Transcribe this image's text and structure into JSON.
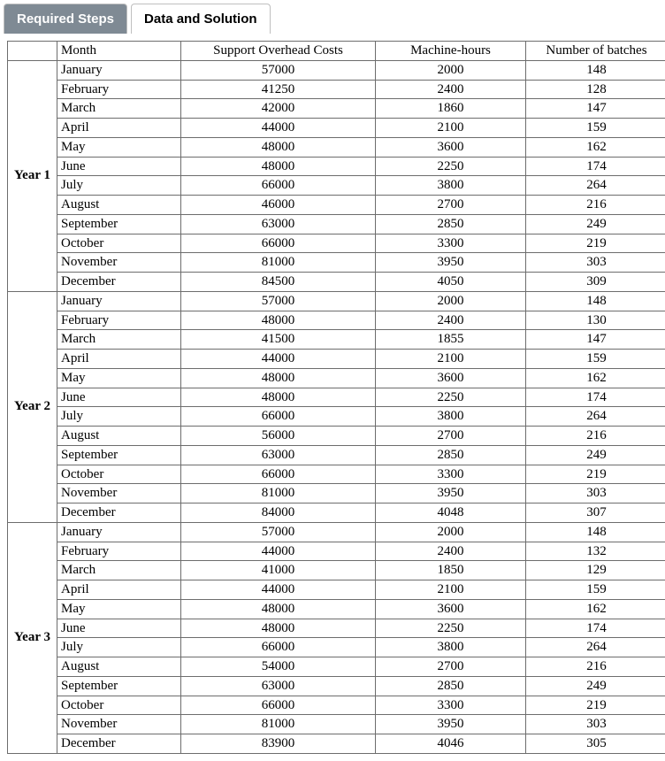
{
  "tabs": [
    {
      "label": "Required Steps",
      "active": false
    },
    {
      "label": "Data and Solution",
      "active": true
    }
  ],
  "table": {
    "headers": {
      "month": "Month",
      "cost": "Support Overhead Costs",
      "mh": "Machine-hours",
      "nb": "Number of batches"
    },
    "groups": [
      {
        "label": "Year 1",
        "rows": [
          {
            "month": "January",
            "cost": 57000,
            "mh": 2000,
            "nb": 148
          },
          {
            "month": "February",
            "cost": 41250,
            "mh": 2400,
            "nb": 128
          },
          {
            "month": "March",
            "cost": 42000,
            "mh": 1860,
            "nb": 147
          },
          {
            "month": "April",
            "cost": 44000,
            "mh": 2100,
            "nb": 159
          },
          {
            "month": "May",
            "cost": 48000,
            "mh": 3600,
            "nb": 162
          },
          {
            "month": "June",
            "cost": 48000,
            "mh": 2250,
            "nb": 174
          },
          {
            "month": "July",
            "cost": 66000,
            "mh": 3800,
            "nb": 264
          },
          {
            "month": "August",
            "cost": 46000,
            "mh": 2700,
            "nb": 216
          },
          {
            "month": "September",
            "cost": 63000,
            "mh": 2850,
            "nb": 249
          },
          {
            "month": "October",
            "cost": 66000,
            "mh": 3300,
            "nb": 219
          },
          {
            "month": "November",
            "cost": 81000,
            "mh": 3950,
            "nb": 303
          },
          {
            "month": "December",
            "cost": 84500,
            "mh": 4050,
            "nb": 309
          }
        ]
      },
      {
        "label": "Year 2",
        "rows": [
          {
            "month": "January",
            "cost": 57000,
            "mh": 2000,
            "nb": 148
          },
          {
            "month": "February",
            "cost": 48000,
            "mh": 2400,
            "nb": 130
          },
          {
            "month": "March",
            "cost": 41500,
            "mh": 1855,
            "nb": 147
          },
          {
            "month": "April",
            "cost": 44000,
            "mh": 2100,
            "nb": 159
          },
          {
            "month": "May",
            "cost": 48000,
            "mh": 3600,
            "nb": 162
          },
          {
            "month": "June",
            "cost": 48000,
            "mh": 2250,
            "nb": 174
          },
          {
            "month": "July",
            "cost": 66000,
            "mh": 3800,
            "nb": 264
          },
          {
            "month": "August",
            "cost": 56000,
            "mh": 2700,
            "nb": 216
          },
          {
            "month": "September",
            "cost": 63000,
            "mh": 2850,
            "nb": 249
          },
          {
            "month": "October",
            "cost": 66000,
            "mh": 3300,
            "nb": 219
          },
          {
            "month": "November",
            "cost": 81000,
            "mh": 3950,
            "nb": 303
          },
          {
            "month": "December",
            "cost": 84000,
            "mh": 4048,
            "nb": 307
          }
        ]
      },
      {
        "label": "Year 3",
        "rows": [
          {
            "month": "January",
            "cost": 57000,
            "mh": 2000,
            "nb": 148
          },
          {
            "month": "February",
            "cost": 44000,
            "mh": 2400,
            "nb": 132
          },
          {
            "month": "March",
            "cost": 41000,
            "mh": 1850,
            "nb": 129
          },
          {
            "month": "April",
            "cost": 44000,
            "mh": 2100,
            "nb": 159
          },
          {
            "month": "May",
            "cost": 48000,
            "mh": 3600,
            "nb": 162
          },
          {
            "month": "June",
            "cost": 48000,
            "mh": 2250,
            "nb": 174
          },
          {
            "month": "July",
            "cost": 66000,
            "mh": 3800,
            "nb": 264
          },
          {
            "month": "August",
            "cost": 54000,
            "mh": 2700,
            "nb": 216
          },
          {
            "month": "September",
            "cost": 63000,
            "mh": 2850,
            "nb": 249
          },
          {
            "month": "October",
            "cost": 66000,
            "mh": 3300,
            "nb": 219
          },
          {
            "month": "November",
            "cost": 81000,
            "mh": 3950,
            "nb": 303
          },
          {
            "month": "December",
            "cost": 83900,
            "mh": 4046,
            "nb": 305
          }
        ]
      }
    ]
  }
}
